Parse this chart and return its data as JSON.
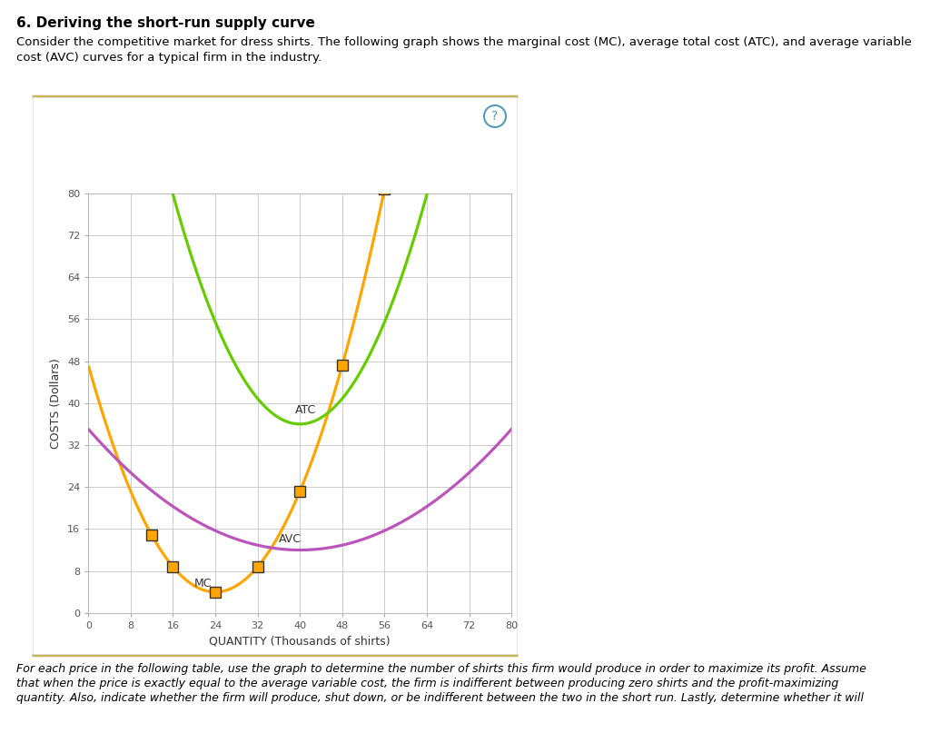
{
  "title_text": "6. Deriving the short-run supply curve",
  "intro_line1": "Consider the competitive market for dress shirts. The following graph shows the marginal cost (MC), average total cost (ATC), and average variable",
  "intro_line2": "cost (AVC) curves for a typical firm in the industry.",
  "xlabel": "QUANTITY (Thousands of shirts)",
  "ylabel": "COSTS (Dollars)",
  "xlim": [
    0,
    80
  ],
  "ylim": [
    0,
    80
  ],
  "xticks": [
    0,
    8,
    16,
    24,
    32,
    40,
    48,
    56,
    64,
    72,
    80
  ],
  "yticks": [
    0,
    8,
    16,
    24,
    32,
    40,
    48,
    56,
    64,
    72,
    80
  ],
  "mc_color": "#FFA500",
  "atc_color": "#66CC00",
  "avc_color": "#BB55BB",
  "marker_color": "#FFA500",
  "marker_edge_color": "#333333",
  "background_color": "#FFFFFF",
  "grid_color": "#CCCCCC",
  "mc_label": "MC",
  "atc_label": "ATC",
  "avc_label": "AVC",
  "mc_marker_x": [
    12,
    16,
    24,
    32,
    40,
    48,
    56
  ],
  "outer_border_color": "#C8B560",
  "question_mark_color": "#5599BB",
  "bottom_text_line1": "For each price in the following table, use the graph to determine the number of shirts this firm would produce in order to maximize its profit. Assume",
  "bottom_text_line2": "that when the price is exactly equal to the average variable cost, the firm is indifferent between producing zero shirts and the profit-maximizing",
  "bottom_text_line3": "quantity. Also, indicate whether the firm will produce, shut down, or be indifferent between the two in the short run. Lastly, determine whether it will",
  "mc_a": 0.075,
  "mc_min_x": 24,
  "mc_min_y": 4,
  "atc_a": 0.076,
  "atc_min_x": 40,
  "atc_min_y": 36,
  "avc_a": 0.0144,
  "avc_min_x": 40,
  "avc_min_y": 12
}
